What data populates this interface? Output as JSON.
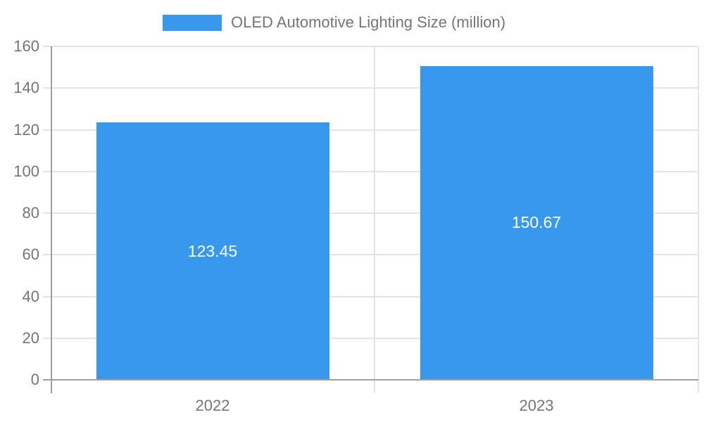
{
  "legend": {
    "label": "OLED Automotive Lighting Size (million)",
    "swatch_color": "#3899EC"
  },
  "chart_data": {
    "type": "bar",
    "title": "OLED Automotive Lighting Size (million)",
    "categories": [
      "2022",
      "2023"
    ],
    "series": [
      {
        "name": "OLED Automotive Lighting Size (million)",
        "values": [
          123.45,
          150.67
        ],
        "color": "#3899EC"
      }
    ],
    "data_labels": [
      "123.45",
      "150.67"
    ],
    "xlabel": "",
    "ylabel": "",
    "ylim": [
      0,
      160
    ],
    "yticks": [
      0,
      20,
      40,
      60,
      80,
      100,
      120,
      140,
      160
    ],
    "grid": true,
    "legend_position": "top",
    "data_label_color": "#ffffff",
    "axis_color": "#a0a0a0",
    "grid_color": "#e4e4e4",
    "tick_label_color": "#757575"
  }
}
